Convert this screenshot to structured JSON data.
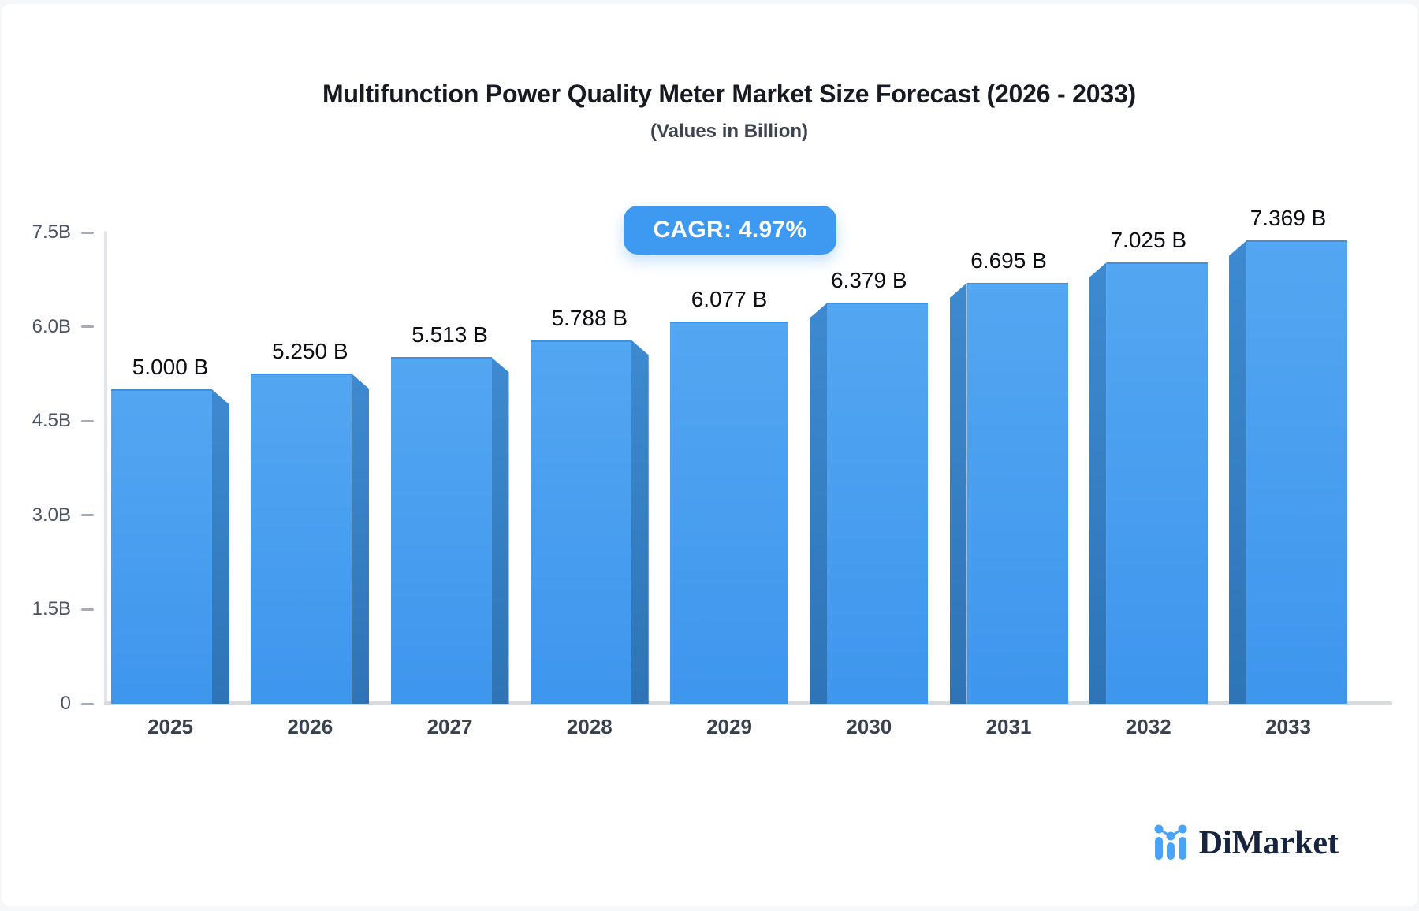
{
  "header": {
    "title": "Multifunction Power Quality Meter Market Size Forecast (2026 - 2033)",
    "subtitle": "(Values in Billion)",
    "cagr_label": "CAGR: 4.97%"
  },
  "chart_data": {
    "type": "bar",
    "title": "Multifunction Power Quality Meter Market Size Forecast (2026 - 2033)",
    "subtitle": "(Values in Billion)",
    "unit": "Billion",
    "cagr_percent": 4.97,
    "categories": [
      "2025",
      "2026",
      "2027",
      "2028",
      "2029",
      "2030",
      "2031",
      "2032",
      "2033"
    ],
    "values": [
      5.0,
      5.25,
      5.513,
      5.788,
      6.077,
      6.379,
      6.695,
      7.025,
      7.369
    ],
    "value_labels": [
      "5.000 B",
      "5.250 B",
      "5.513 B",
      "5.788 B",
      "6.077 B",
      "6.379 B",
      "6.695 B",
      "7.025 B",
      "7.369 B"
    ],
    "y_ticks": [
      {
        "label": "0",
        "value": 0
      },
      {
        "label": "1.5B",
        "value": 1.5
      },
      {
        "label": "3.0B",
        "value": 3.0
      },
      {
        "label": "4.5B",
        "value": 4.5
      },
      {
        "label": "6.0B",
        "value": 6.0
      },
      {
        "label": "7.5B",
        "value": 7.5
      }
    ],
    "ylim": [
      0,
      7.5
    ],
    "xlabel": "",
    "ylabel": "",
    "grid": false,
    "legend": null,
    "colors": {
      "bar_face_top": "#53a6f1",
      "bar_face_bottom": "#3e96ed",
      "bar_side_top": "#3e8ad0",
      "bar_side_bottom": "#2e74b6",
      "badge_background": "#3d9af0",
      "badge_text": "#ffffff",
      "axis_line": "#e4e5ea",
      "logo_navy": "#16243d",
      "logo_blue": "#4aa3f6"
    }
  },
  "footer": {
    "brand": "DiMarket",
    "logo_icon": "bar-chart-trend-icon"
  }
}
